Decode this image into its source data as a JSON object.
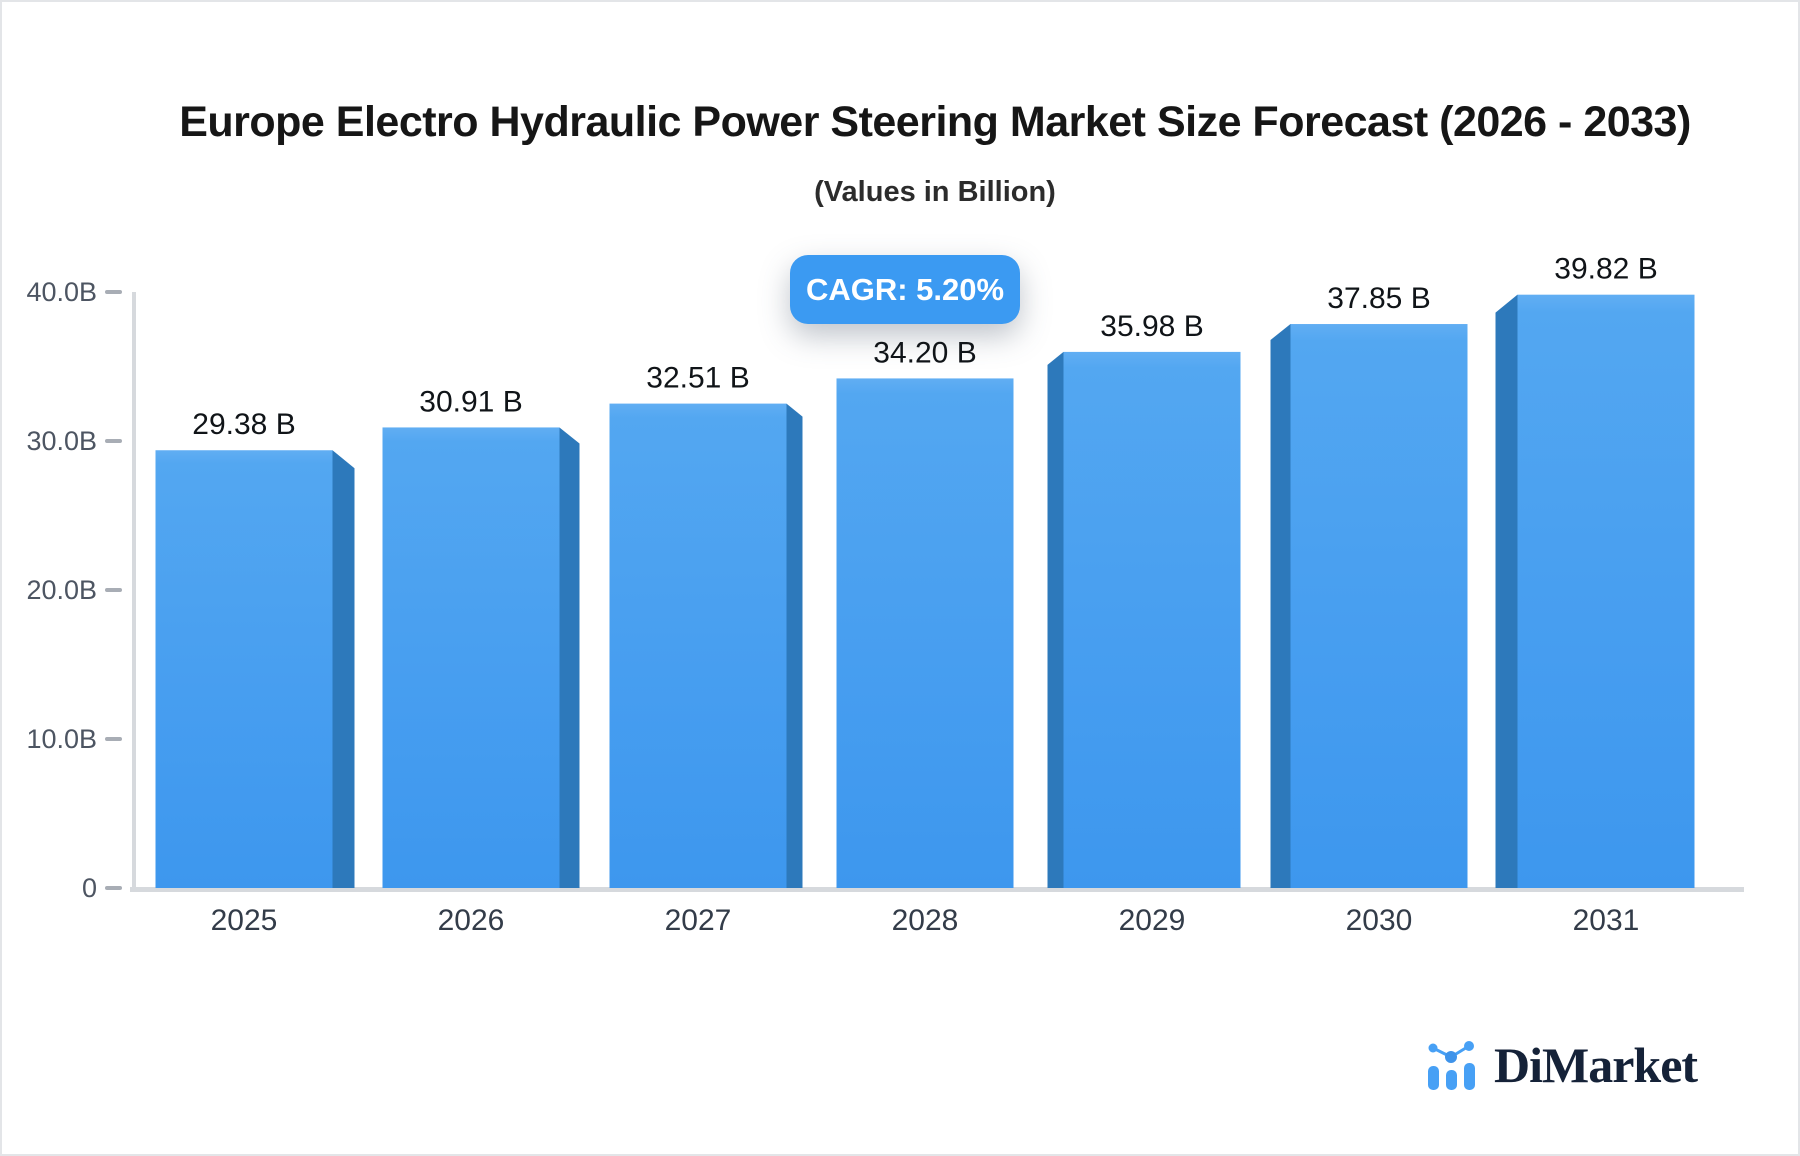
{
  "header": {
    "title": "Europe Electro Hydraulic Power Steering Market Size Forecast (2026 - 2033)",
    "subtitle": "(Values in Billion)"
  },
  "badge": {
    "label": "CAGR: 5.20%",
    "background_color": "#3B9AF2",
    "text_color": "#FFFFFF"
  },
  "chart_data": {
    "type": "bar",
    "title": "Europe Electro Hydraulic Power Steering Market Size Forecast (2026 - 2033)",
    "subtitle": "(Values in Billion)",
    "unit": "Billion",
    "cagr_annotation": "CAGR: 5.20%",
    "categories": [
      "2025",
      "2026",
      "2027",
      "2028",
      "2029",
      "2030",
      "2031"
    ],
    "values": [
      29.38,
      30.91,
      32.51,
      34.2,
      35.98,
      37.85,
      39.82
    ],
    "value_labels": [
      "29.38 B",
      "30.91 B",
      "32.51 B",
      "34.20 B",
      "35.98 B",
      "37.85 B",
      "39.82 B"
    ],
    "xlabel": "",
    "ylabel": "",
    "ylim": [
      0,
      40
    ],
    "yticks": [
      {
        "value": 0,
        "label": "0"
      },
      {
        "value": 10,
        "label": "10.0B"
      },
      {
        "value": 20,
        "label": "20.0B"
      },
      {
        "value": 30,
        "label": "30.0B"
      },
      {
        "value": 40,
        "label": "40.0B"
      }
    ],
    "grid": false,
    "legend": "none",
    "bar_face_color_top": "#5BABF2",
    "bar_face_color_bottom": "#3D97EE",
    "bar_side_color": "#2D79BB",
    "axis_line_color": "#D6D9DD",
    "tick_dash_color": "#A8ADB5",
    "tick_label_color": "#4D5562",
    "category_label_color": "#333C49",
    "value_label_color": "#101418"
  },
  "logo": {
    "text": "DiMarket",
    "icon": "bar-chart-logo-icon",
    "icon_color": "#47A0F5",
    "text_color": "#152238"
  }
}
